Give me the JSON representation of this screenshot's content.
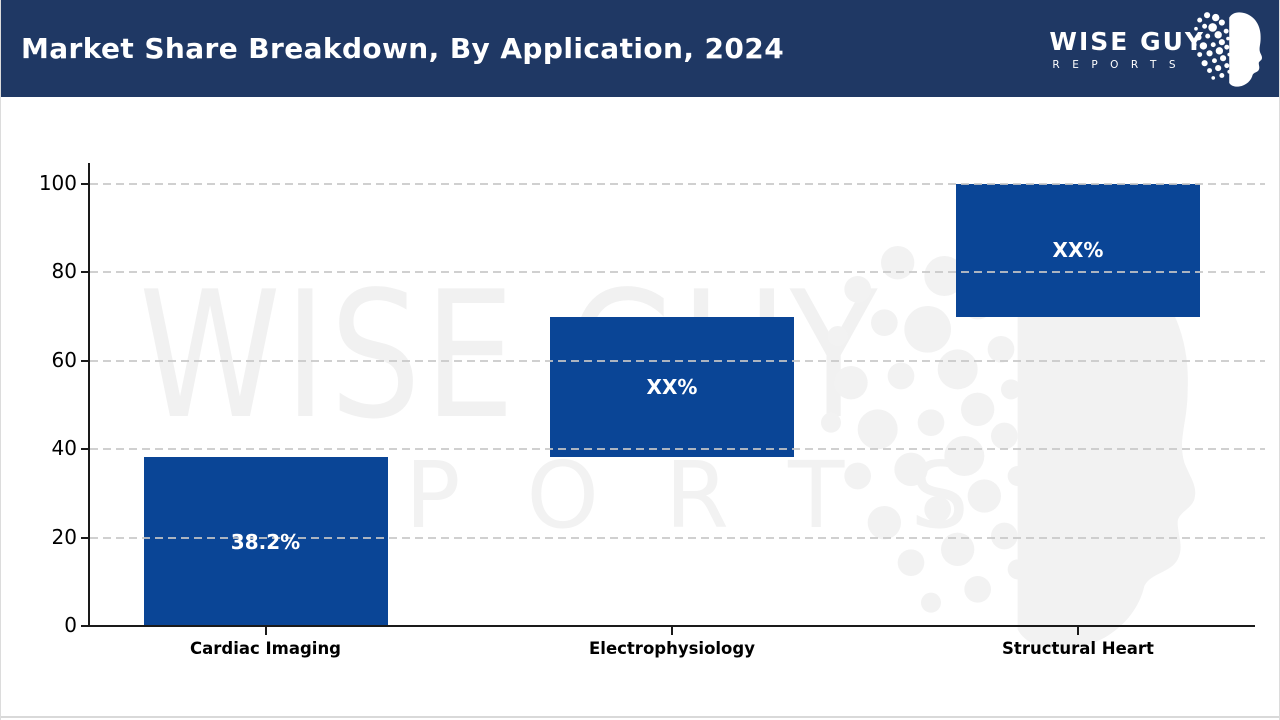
{
  "header": {
    "title": "Market Share Breakdown, By Application, 2024",
    "logo": {
      "line1": "WISE GUY",
      "line2": "REPORTS"
    }
  },
  "watermark": {
    "line1": "WISE GUY",
    "line2": "REPORTS"
  },
  "chart_data": {
    "type": "bar",
    "variant": "floating-segments",
    "title": "Market Share Breakdown, By Application, 2024",
    "categories": [
      "Cardiac Imaging",
      "Electrophysiology",
      "Structural Heart"
    ],
    "segments": [
      {
        "category": "Cardiac Imaging",
        "start": 0,
        "end": 38.2,
        "label": "38.2%"
      },
      {
        "category": "Electrophysiology",
        "start": 38.2,
        "end": 70,
        "label": "XX%"
      },
      {
        "category": "Structural Heart",
        "start": 70,
        "end": 100,
        "label": "XX%"
      }
    ],
    "xlabel": "",
    "ylabel": "",
    "ylim": [
      0,
      105
    ],
    "yticks": [
      0,
      20,
      40,
      60,
      80,
      100
    ],
    "grid": "horizontal dashed, drawn above bars",
    "legend": false,
    "bar_color": "#0a4596",
    "value_label_color": "#ffffff"
  },
  "colors": {
    "header_bg": "#1f3864",
    "bar": "#0a4596",
    "grid": "#cccccc",
    "axis": "#1a1a1a",
    "watermark": "#f1f1f1"
  }
}
